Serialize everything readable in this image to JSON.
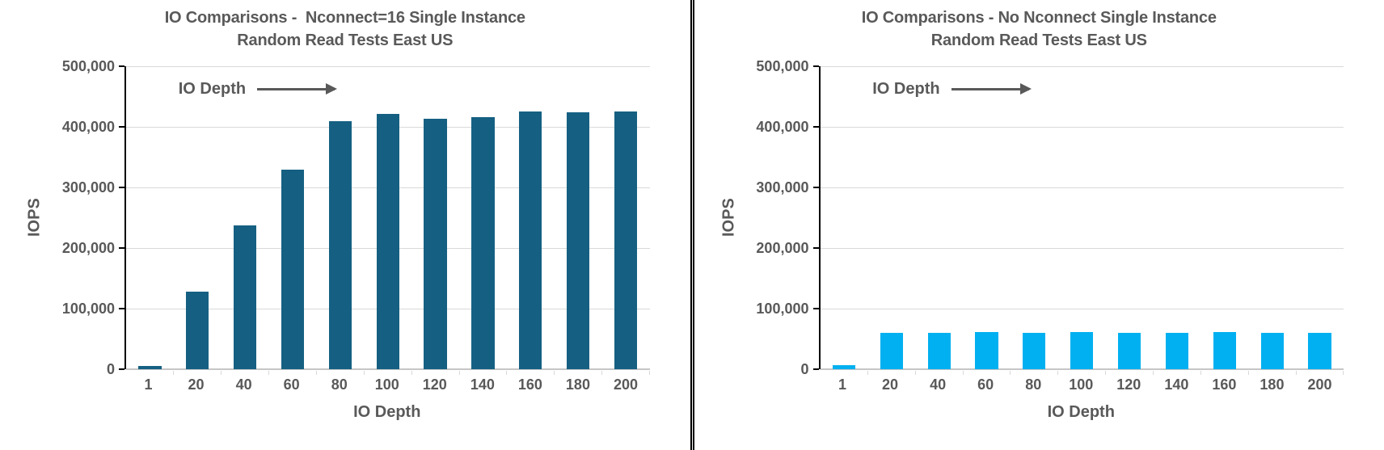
{
  "colors": {
    "text": "#595959",
    "gridline": "#d9d9d9",
    "axis": "#000000",
    "separator": "#000000",
    "nconnect16_bar": "#156082",
    "no_nconnect_bar": "#00B0F0"
  },
  "chart_data": [
    {
      "type": "bar",
      "title_line1": "IO Comparisons -  Nconnect=16 Single Instance",
      "title_line2": "Random Read Tests East US",
      "ylabel": "IOPS",
      "xlabel": "IO Depth",
      "annotation": "IO Depth",
      "categories": [
        "1",
        "20",
        "40",
        "60",
        "80",
        "100",
        "120",
        "140",
        "160",
        "180",
        "200"
      ],
      "values": [
        5000,
        128000,
        238000,
        330000,
        409000,
        422000,
        413000,
        416000,
        426000,
        424000,
        425000
      ],
      "ylim": [
        0,
        500000
      ],
      "ytick_labels": [
        "0",
        "100,000",
        "200,000",
        "300,000",
        "400,000",
        "500,000"
      ],
      "grid": true,
      "legend": "none",
      "bar_color": "#156082"
    },
    {
      "type": "bar",
      "title_line1": "IO Comparisons - No Nconnect Single Instance",
      "title_line2": "Random Read Tests East US",
      "ylabel": "IOPS",
      "xlabel": "IO Depth",
      "annotation": "IO Depth",
      "categories": [
        "1",
        "20",
        "40",
        "60",
        "80",
        "100",
        "120",
        "140",
        "160",
        "180",
        "200"
      ],
      "values": [
        7000,
        60000,
        60000,
        61000,
        60000,
        61000,
        60000,
        60000,
        61000,
        60000,
        60000
      ],
      "ylim": [
        0,
        500000
      ],
      "ytick_labels": [
        "0",
        "100,000",
        "200,000",
        "300,000",
        "400,000",
        "500,000"
      ],
      "grid": true,
      "legend": "none",
      "bar_color": "#00B0F0"
    }
  ]
}
